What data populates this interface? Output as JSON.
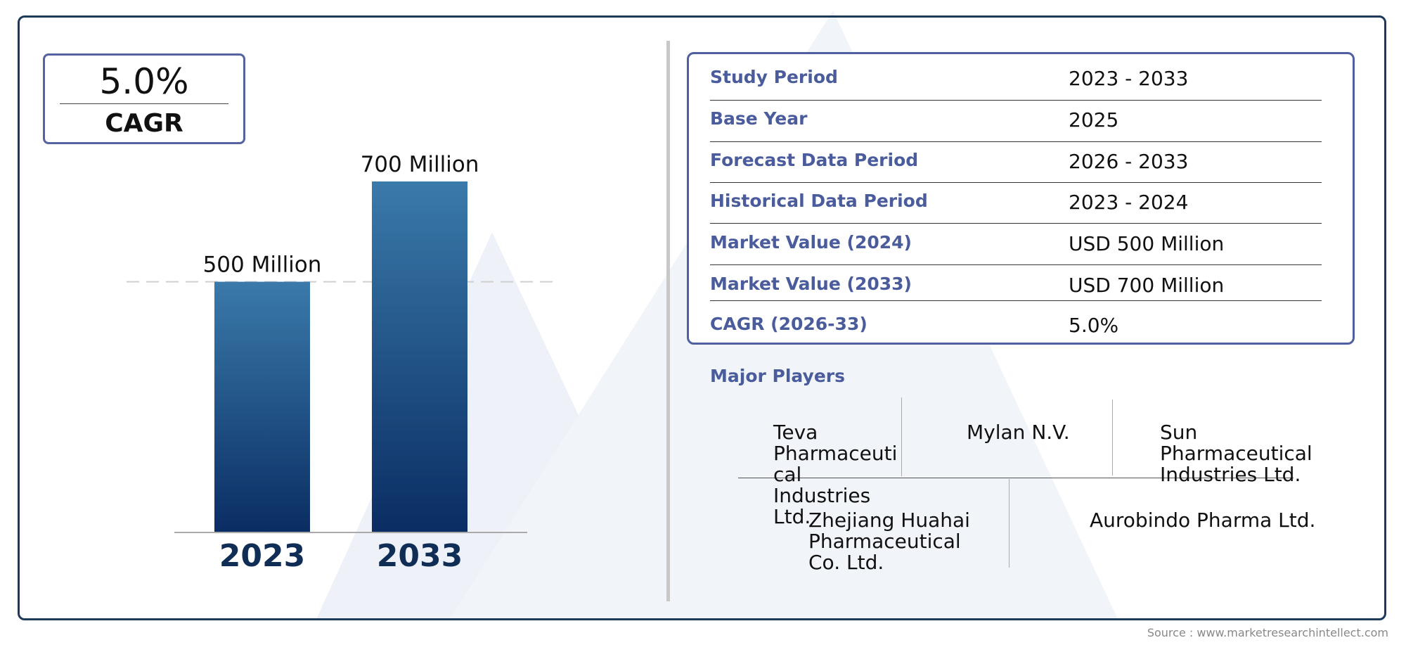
{
  "cagr_badge": {
    "value": "5.0%",
    "label": "CAGR"
  },
  "chart_data": {
    "type": "bar",
    "categories": [
      "2023",
      "2033"
    ],
    "values": [
      500,
      700
    ],
    "data_labels": [
      "500 Million",
      "700 Million"
    ],
    "unit": "Million",
    "ylim": [
      0,
      700
    ],
    "grid": false,
    "reference_line_at": 500
  },
  "info_table": {
    "rows": [
      {
        "key": "Study Period",
        "value": "2023 - 2033"
      },
      {
        "key": "Base Year",
        "value": "2025"
      },
      {
        "key": "Forecast Data Period",
        "value": "2026 - 2033"
      },
      {
        "key": "Historical Data Period",
        "value": "2023 - 2024"
      },
      {
        "key": "Market Value (2024)",
        "value": "USD 500 Million"
      },
      {
        "key": "Market Value (2033)",
        "value": "USD 700 Million"
      },
      {
        "key": "CAGR (2026-33)",
        "value": "5.0%"
      }
    ]
  },
  "major_players": {
    "title": "Major Players",
    "players": [
      "Teva Pharmaceuti cal Industries Ltd.",
      "Mylan N.V.",
      "Sun Pharmaceutical Industries Ltd.",
      "Zhejiang Huahai Pharmaceutical Co. Ltd.",
      "Aurobindo Pharma Ltd."
    ]
  },
  "source": "Source : www.marketresearchintellect.com",
  "colors": {
    "bar_top": "#3a7aaa",
    "bar_bottom": "#0a2d63",
    "frame": "#1d3a5a",
    "accent_text": "#4a5c9c"
  }
}
